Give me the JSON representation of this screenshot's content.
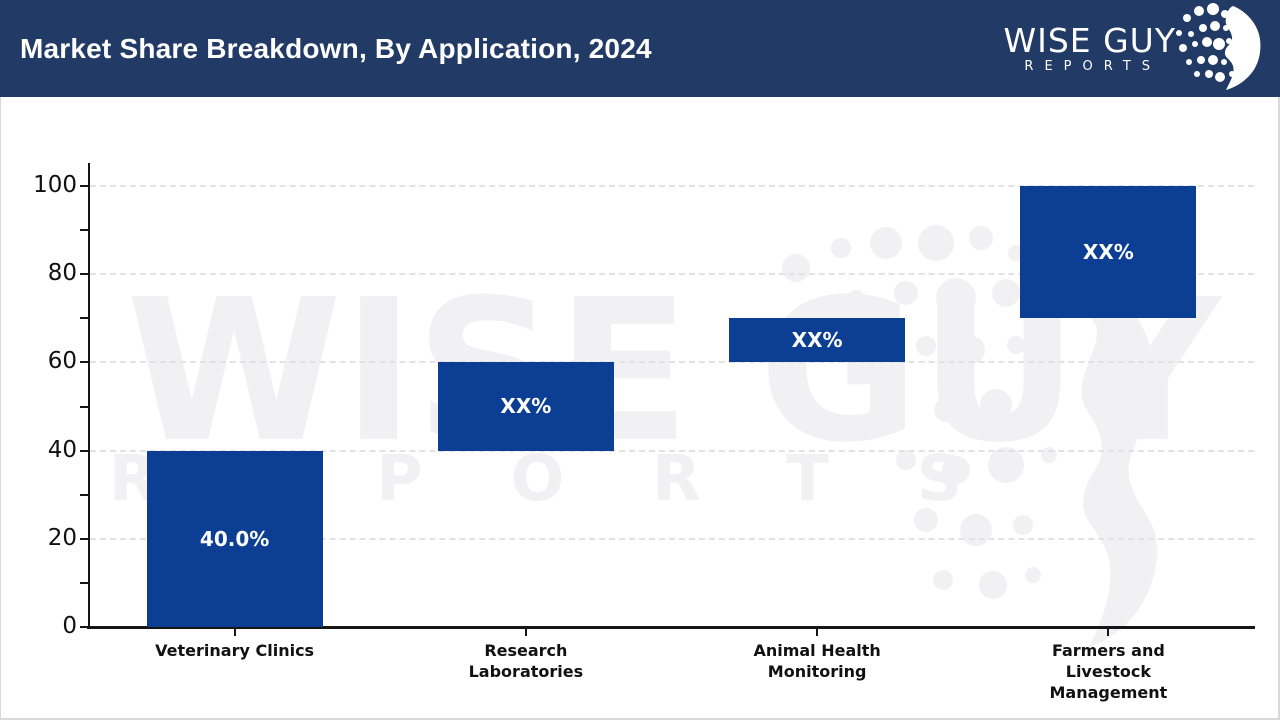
{
  "header": {
    "title": "Market Share Breakdown, By Application, 2024",
    "bg_color": "#213a66",
    "brand_line1": "WISE GUY",
    "brand_line2": "REPORTS"
  },
  "watermark": {
    "line1": "WISE GUY",
    "line2": "REPORTS"
  },
  "chart_data": {
    "type": "bar",
    "subtype": "waterfall",
    "title": "Market Share Breakdown, By Application, 2024",
    "categories": [
      {
        "name": "Veterinary Clinics",
        "lines": [
          "Veterinary Clinics"
        ]
      },
      {
        "name": "Research Laboratories",
        "lines": [
          "Research",
          "Laboratories"
        ]
      },
      {
        "name": "Animal Health Monitoring",
        "lines": [
          "Animal Health",
          "Monitoring"
        ]
      },
      {
        "name": "Farmers and Livestock Management",
        "lines": [
          "Farmers and",
          "Livestock",
          "Management"
        ]
      }
    ],
    "segments": [
      {
        "category": "Veterinary Clinics",
        "start": 0,
        "end": 40,
        "value_label": "40.0%"
      },
      {
        "category": "Research Laboratories",
        "start": 40,
        "end": 60,
        "value_label": "XX%"
      },
      {
        "category": "Animal Health Monitoring",
        "start": 60,
        "end": 70,
        "value_label": "XX%"
      },
      {
        "category": "Farmers and Livestock Management",
        "start": 70,
        "end": 100,
        "value_label": "XX%"
      }
    ],
    "ylim": [
      0,
      100
    ],
    "y_ticks": [
      0,
      20,
      40,
      60,
      80,
      100
    ],
    "y_minor_step": 10,
    "grid": "horizontal dashed",
    "bar_color": "#0c3e93",
    "value_label_color": "#ffffff",
    "axis_color": "#151515",
    "gridline_color": "#e2e2e2",
    "watermark_color": "#f1f1f4"
  }
}
